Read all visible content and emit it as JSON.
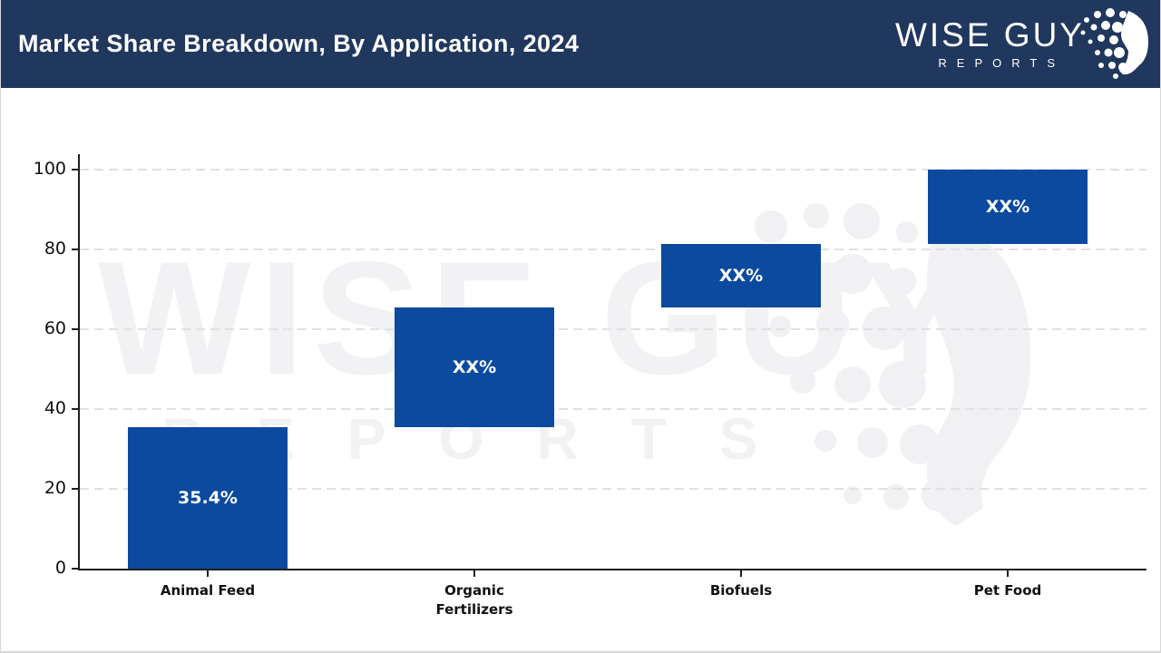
{
  "header": {
    "title": "Market Share Breakdown, By Application, 2024",
    "logo": {
      "brand": "WISE GUY",
      "sub": "REPORTS"
    }
  },
  "watermark": {
    "brand": "WISE GUY",
    "sub": "REPORTS"
  },
  "chart_data": {
    "type": "bar",
    "subtype": "waterfall-segments",
    "title": "Market Share Breakdown, By Application, 2024",
    "categories": [
      "Animal Feed",
      "Organic Fertilizers",
      "Biofuels",
      "Pet Food"
    ],
    "segments": [
      {
        "category": "Animal Feed",
        "start": 0,
        "end": 35.4,
        "label": "35.4%"
      },
      {
        "category": "Organic Fertilizers",
        "start": 35.4,
        "end": 65.5,
        "label": "XX%"
      },
      {
        "category": "Biofuels",
        "start": 65.5,
        "end": 81.3,
        "label": "XX%"
      },
      {
        "category": "Pet Food",
        "start": 81.3,
        "end": 100,
        "label": "XX%"
      }
    ],
    "ylim": [
      0,
      100
    ],
    "y_ticks": [
      0,
      20,
      40,
      60,
      80,
      100
    ],
    "xlabel": "",
    "ylabel": "",
    "grid": "horizontal-dashed",
    "legend": "none",
    "bar_color": "#0B4A9F",
    "bar_label_color": "#FFFFFF"
  },
  "colors": {
    "header_bg": "#20375E",
    "bar": "#0B4A9F",
    "watermark": "#F2F2F4",
    "grid": "#E1E1E3",
    "axis": "#1F1F1F",
    "page_border": "#D8D8D8"
  }
}
